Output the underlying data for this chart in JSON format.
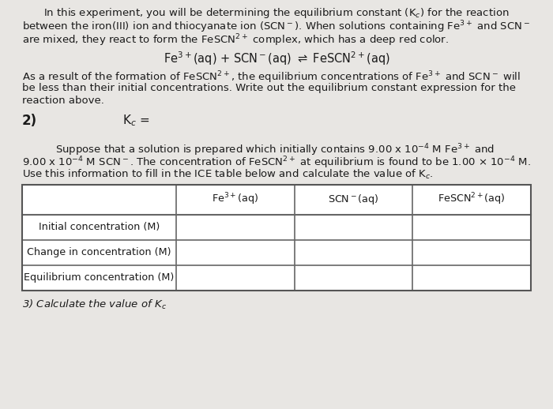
{
  "bg_color": "#e8e6e3",
  "text_color": "#1a1a1a",
  "fs_main": 9.5,
  "fs_eq": 10.5,
  "fs_table": 9.2,
  "fs_footer": 9.5,
  "col_headers": [
    "Fe$^{3+}$(aq)",
    "SCN$^{-}$(aq)",
    "FeSCN$^{2+}$(aq)"
  ],
  "row_headers": [
    "Initial concentration (M)",
    "Change in concentration (M)",
    "Equilibrium concentration (M)"
  ]
}
